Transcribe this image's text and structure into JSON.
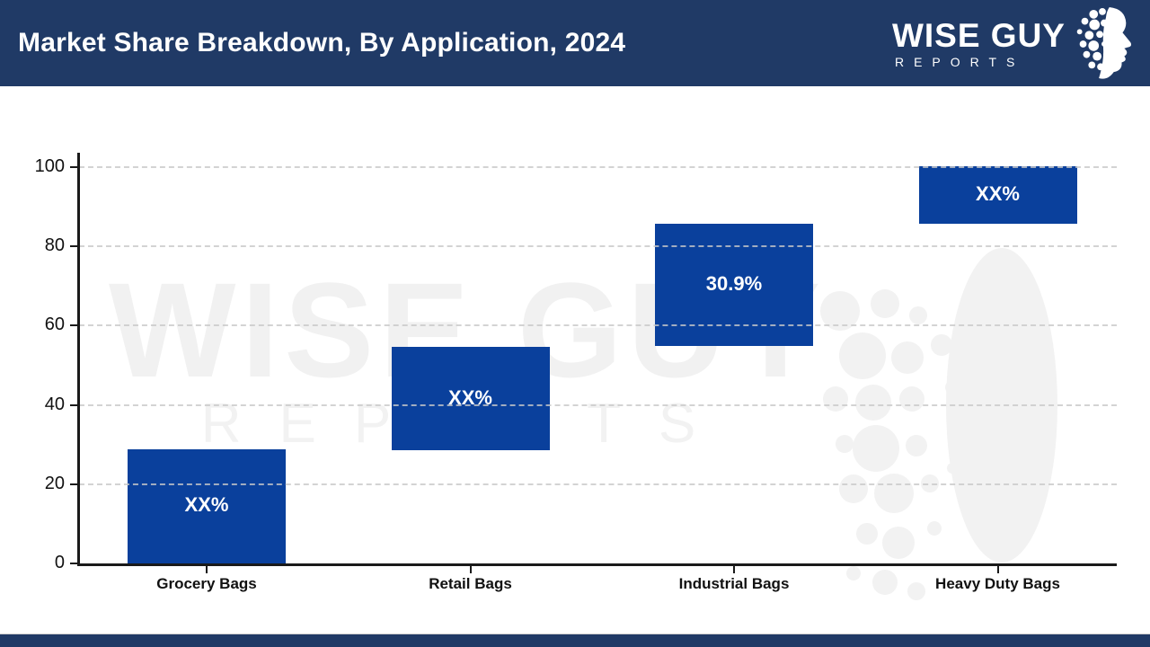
{
  "header": {
    "title": "Market Share Breakdown, By Application, 2024",
    "bg_color": "#203a66",
    "logo": {
      "line1": "WISE GUY",
      "line2": "REPORTS"
    }
  },
  "watermark": {
    "line1": "WISE GUY",
    "line2": "REPORTS"
  },
  "chart_data": {
    "type": "bar",
    "subtype": "waterfall-floating-bars",
    "title": "Market Share Breakdown, By Application, 2024",
    "xlabel": "",
    "ylabel": "",
    "categories": [
      "Grocery Bags",
      "Retail Bags",
      "Industrial Bags",
      "Heavy Duty Bags"
    ],
    "bars": [
      {
        "category": "Grocery Bags",
        "start": 0,
        "end": 28.8,
        "label": "XX%"
      },
      {
        "category": "Retail Bags",
        "start": 28.6,
        "end": 54.6,
        "label": "XX%"
      },
      {
        "category": "Industrial Bags",
        "start": 54.9,
        "end": 85.8,
        "label": "30.9%"
      },
      {
        "category": "Heavy Duty Bags",
        "start": 85.6,
        "end": 100.2,
        "label": "XX%"
      }
    ],
    "y_ticks": [
      0,
      20,
      40,
      60,
      80,
      100
    ],
    "ylim": [
      0,
      105
    ],
    "grid": "horizontal-dashed",
    "legend": "none",
    "bar_color": "#0a409c",
    "bar_label_color": "#ffffff",
    "axis_color": "#1a1a1a",
    "grid_color": "#c9c9c9"
  }
}
